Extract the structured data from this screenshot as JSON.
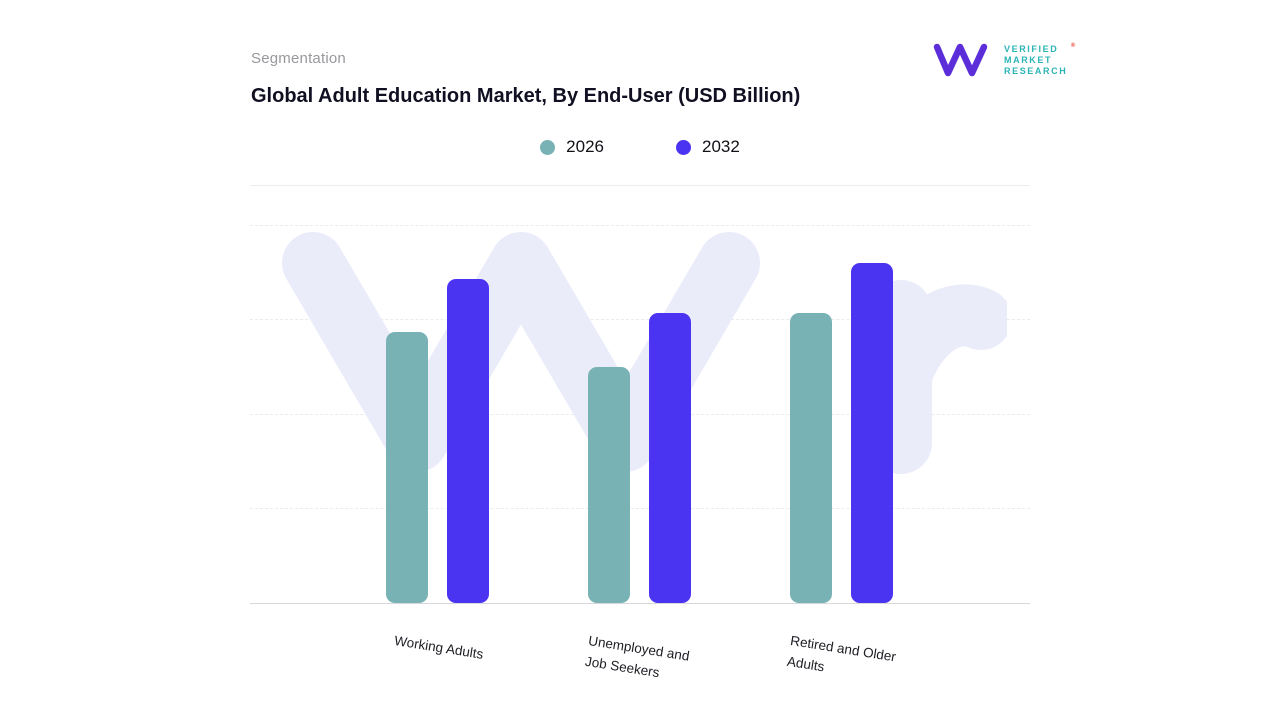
{
  "header": {
    "eyebrow": "Segmentation",
    "title": "Global Adult Education Market, By End-User (USD Billion)"
  },
  "logo": {
    "lines": [
      "VERIFIED",
      "MARKET",
      "RESEARCH"
    ],
    "registered": "®",
    "monogram_color": "#5b2ed9",
    "text_color": "#2ab4b6",
    "registered_color": "#e8472b"
  },
  "legend": [
    {
      "label": "2026",
      "color": "#79b2b4"
    },
    {
      "label": "2032",
      "color": "#4b33f2"
    }
  ],
  "watermark": {
    "color": "#ebecfa"
  },
  "chart_data": {
    "type": "bar",
    "title": "Global Adult Education Market, By End-User (USD Billion)",
    "categories": [
      "Working Adults",
      "Unemployed and Job Seekers",
      "Retired and Older Adults"
    ],
    "category_label_lines": [
      [
        "Working Adults"
      ],
      [
        "Unemployed and",
        "Job Seekers"
      ],
      [
        "Retired and Older",
        "Adults"
      ]
    ],
    "series": [
      {
        "name": "2026",
        "color": "#79b2b4",
        "values": [
          8.6,
          7.5,
          9.2
        ]
      },
      {
        "name": "2032",
        "color": "#4b33f2",
        "values": [
          10.3,
          9.2,
          10.8
        ]
      }
    ],
    "xlabel": "",
    "ylabel": "",
    "ylim": [
      0,
      12
    ],
    "grid": "dashed-horizontal",
    "legend_position": "top-center"
  }
}
